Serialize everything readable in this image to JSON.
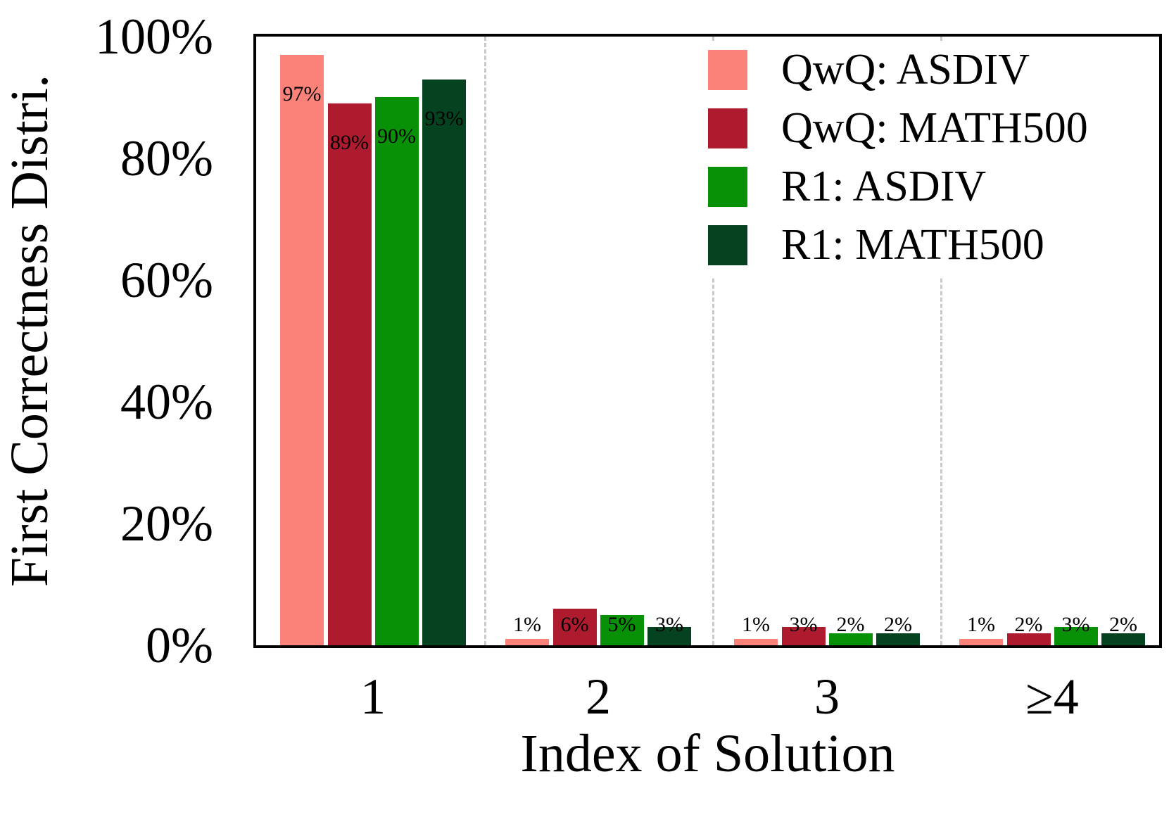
{
  "chart_data": {
    "type": "bar",
    "title": "",
    "xlabel": "Index of Solution",
    "ylabel": "First Correctness Distri.",
    "categories": [
      "1",
      "2",
      "3",
      "≥4"
    ],
    "series": [
      {
        "name": "QwQ: ASDIV",
        "color": "#FA8278",
        "values": [
          97,
          1,
          1,
          1
        ]
      },
      {
        "name": "QwQ: MATH500",
        "color": "#AE1B2E",
        "values": [
          89,
          6,
          3,
          2
        ]
      },
      {
        "name": "R1: ASDIV",
        "color": "#089106",
        "values": [
          90,
          5,
          2,
          3
        ]
      },
      {
        "name": "R1: MATH500",
        "color": "#05421F",
        "values": [
          93,
          3,
          2,
          2
        ]
      }
    ],
    "bar_labels": [
      [
        "97%",
        "1%",
        "1%",
        "1%"
      ],
      [
        "89%",
        "6%",
        "3%",
        "2%"
      ],
      [
        "90%",
        "5%",
        "2%",
        "3%"
      ],
      [
        "93%",
        "3%",
        "2%",
        "2%"
      ]
    ],
    "yticks": [
      "0%",
      "20%",
      "40%",
      "60%",
      "80%",
      "100%"
    ],
    "ylim": [
      0,
      100
    ],
    "legend_position": "upper right",
    "grid": "vertical dashed separators between category groups",
    "separator_color": "#C9C9C9",
    "axis_color": "#000000",
    "background_color": "#FFFFFF"
  }
}
